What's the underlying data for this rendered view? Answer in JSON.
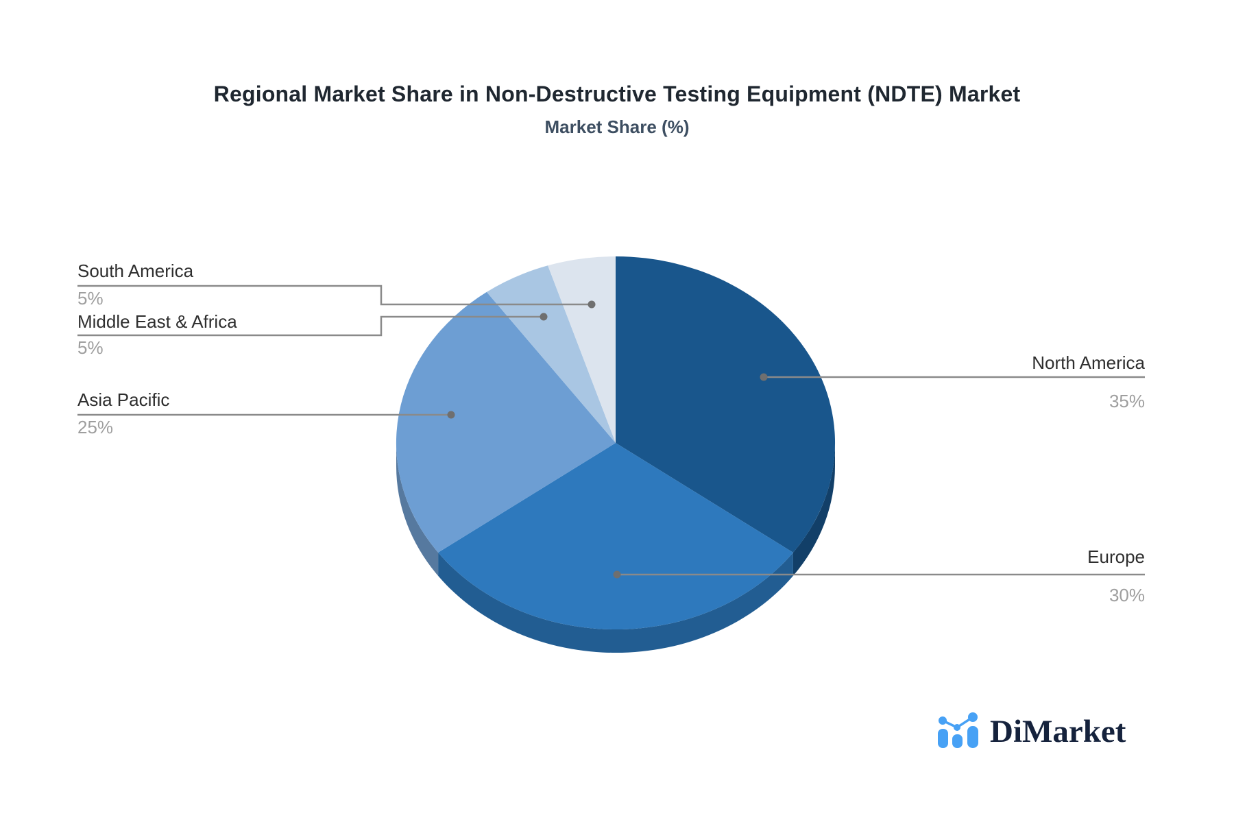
{
  "title": "Regional Market Share in Non-Destructive Testing Equipment (NDTE) Market",
  "subtitle": "Market Share (%)",
  "logo": {
    "text": "DiMarket",
    "icon": "bar-chart-trend-icon",
    "icon_color": "#47a1f5",
    "text_color": "#15223c"
  },
  "chart_data": {
    "type": "pie",
    "style": "3d",
    "unit": "%",
    "title": "Regional Market Share in Non-Destructive Testing Equipment (NDTE) Market",
    "subtitle": "Market Share (%)",
    "direction": "clockwise",
    "start_angle_deg": 0,
    "labels": [
      "North America",
      "Europe",
      "Asia Pacific",
      "Middle East & Africa",
      "South America"
    ],
    "values": [
      35,
      30,
      25,
      5,
      5
    ],
    "colors": [
      "#19568c",
      "#2e79bd",
      "#6d9ed3",
      "#a9c6e3",
      "#dce4ee"
    ],
    "side_colors": [
      "#123f68",
      "#225d92",
      "#56799f",
      "#7e94ab",
      "#a5abb5"
    ],
    "leader_line_color": "#8a8a8a",
    "leader_dot_color": "#6f6f6f",
    "label_color": "#2e2e2e",
    "value_color": "#9e9e9e",
    "legend_position": "callouts"
  },
  "callouts": {
    "north_america": {
      "label": "North America",
      "value": "35%"
    },
    "europe": {
      "label": "Europe",
      "value": "30%"
    },
    "asia_pacific": {
      "label": "Asia Pacific",
      "value": "25%"
    },
    "south_america": {
      "label": "South America",
      "value": "5%"
    },
    "middle_east_africa": {
      "label": "Middle East & Africa",
      "value": "5%"
    }
  }
}
